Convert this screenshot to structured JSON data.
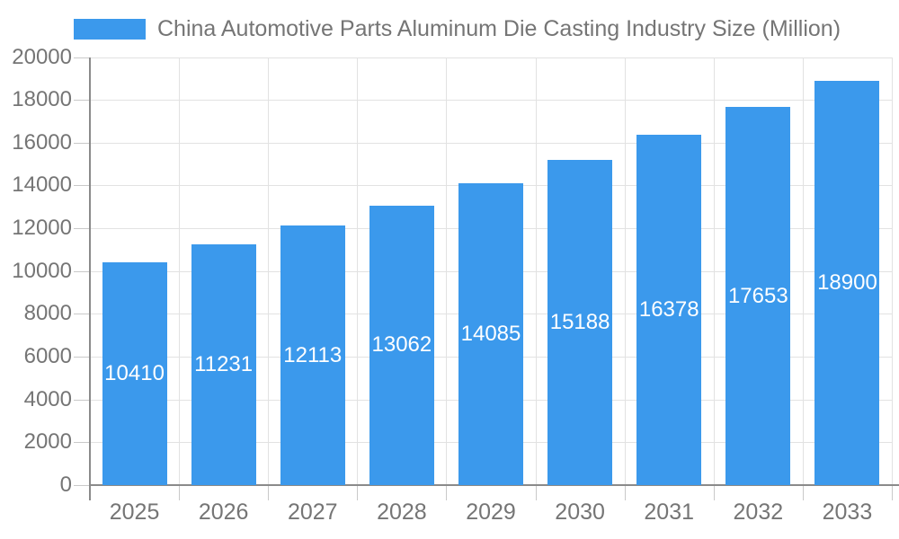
{
  "legend": {
    "label": "China Automotive Parts Aluminum Die Casting Industry Size (Million)"
  },
  "chart_data": {
    "type": "bar",
    "title": "China Automotive Parts Aluminum Die Casting Industry Size (Million)",
    "categories": [
      "2025",
      "2026",
      "2027",
      "2028",
      "2029",
      "2030",
      "2031",
      "2032",
      "2033"
    ],
    "values": [
      10410,
      11231,
      12113,
      13062,
      14085,
      15188,
      16378,
      17653,
      18900
    ],
    "xlabel": "",
    "ylabel": "",
    "ylim": [
      0,
      20000
    ],
    "yticks": [
      0,
      2000,
      4000,
      6000,
      8000,
      10000,
      12000,
      14000,
      16000,
      18000,
      20000
    ],
    "grid": "both",
    "legend_position": "top",
    "value_label_position": "inside-center",
    "colors": {
      "bar": "#3b99ec",
      "bar_label": "#ffffff",
      "axis_text": "#757575",
      "title_text": "#757575",
      "gridline": "#e2e2e2",
      "tick": "#c9c9c9",
      "axis_line": "#8a8a8a",
      "background": "#ffffff"
    }
  }
}
